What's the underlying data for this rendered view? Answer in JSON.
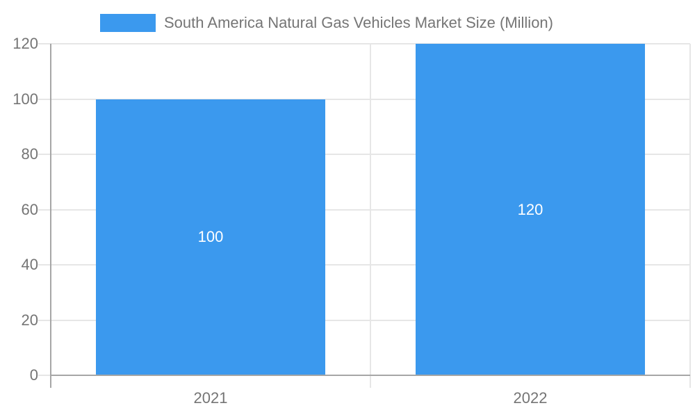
{
  "chart": {
    "legend": {
      "label": "South America Natural Gas Vehicles Market Size (Million)"
    },
    "colors": {
      "bar": "#3B99EE",
      "axis": "#a6a6a6",
      "grid": "#e6e6e6",
      "text": "#757575",
      "value_label": "#ffffff",
      "background": "#ffffff"
    }
  },
  "chart_data": {
    "type": "bar",
    "title": "South America Natural Gas Vehicles Market Size (Million)",
    "categories": [
      "2021",
      "2022"
    ],
    "series": [
      {
        "name": "South America Natural Gas Vehicles Market Size (Million)",
        "values": [
          100,
          120
        ]
      }
    ],
    "value_labels": [
      "100",
      "120"
    ],
    "xlabel": "",
    "ylabel": "",
    "ylim": [
      0,
      120
    ],
    "yticks": [
      0,
      20,
      40,
      60,
      80,
      100,
      120
    ],
    "grid": true,
    "legend_position": "top"
  }
}
